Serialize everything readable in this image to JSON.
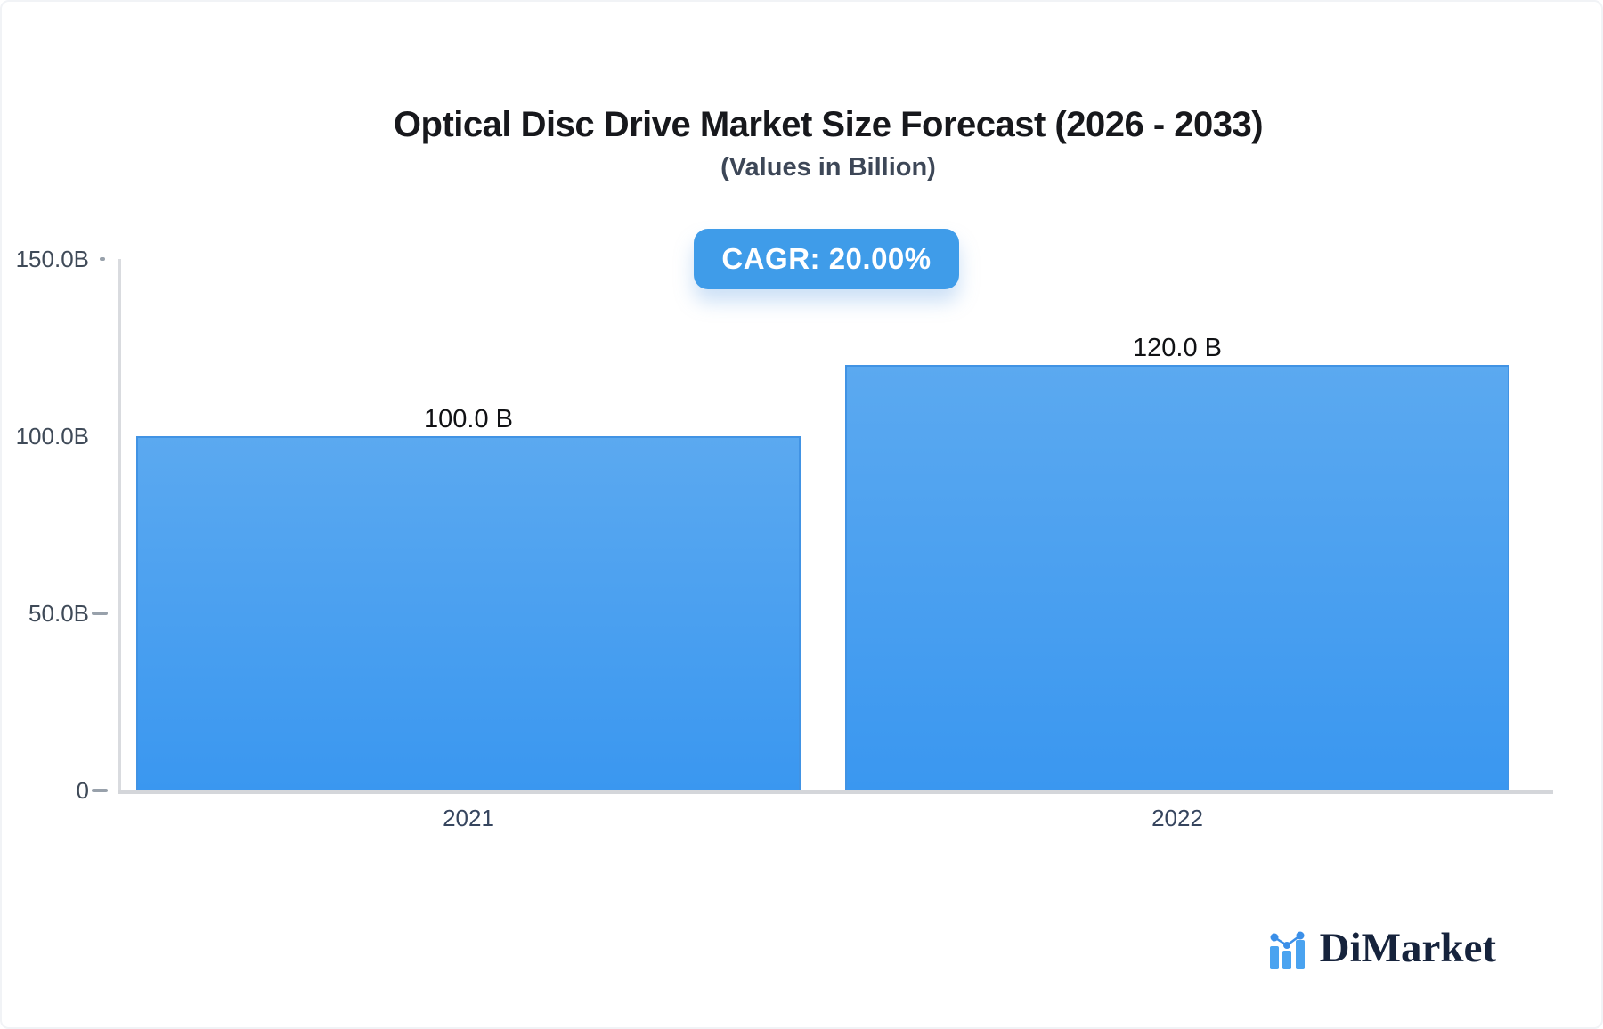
{
  "title": "Optical Disc Drive Market Size Forecast (2026 - 2033)",
  "subtitle": "(Values in Billion)",
  "cagr_badge": "CAGR: 20.00%",
  "brand": {
    "name": "DiMarket",
    "icon": "bar-chart-logo-icon"
  },
  "colors": {
    "bar_top": "#5ba9f0",
    "bar_bottom": "#3a97f0",
    "bar_border": "#4193e4",
    "badge_background": "#3f9ce9",
    "badge_text": "#ffffff",
    "axis_line": "#d4d6da",
    "axis_label": "#3f4a58",
    "title_text": "#17181c",
    "brand_text": "#16233c",
    "brand_icon_blue": "#4aa3f0"
  },
  "chart_data": {
    "type": "bar",
    "title": "Optical Disc Drive Market Size Forecast (2026 - 2033)",
    "subtitle": "(Values in Billion)",
    "unit": "Billion",
    "categories": [
      "2021",
      "2022"
    ],
    "values": [
      100.0,
      120.0
    ],
    "value_labels": [
      "100.0 B",
      "120.0 B"
    ],
    "ylim": [
      0,
      150
    ],
    "ytick_values": [
      150,
      100,
      50,
      0
    ],
    "yticks": [
      "150.0B",
      "100.0B",
      "50.0B",
      "0"
    ],
    "grid": "off",
    "legend": "none",
    "annotations": [
      "CAGR: 20.00%"
    ]
  }
}
